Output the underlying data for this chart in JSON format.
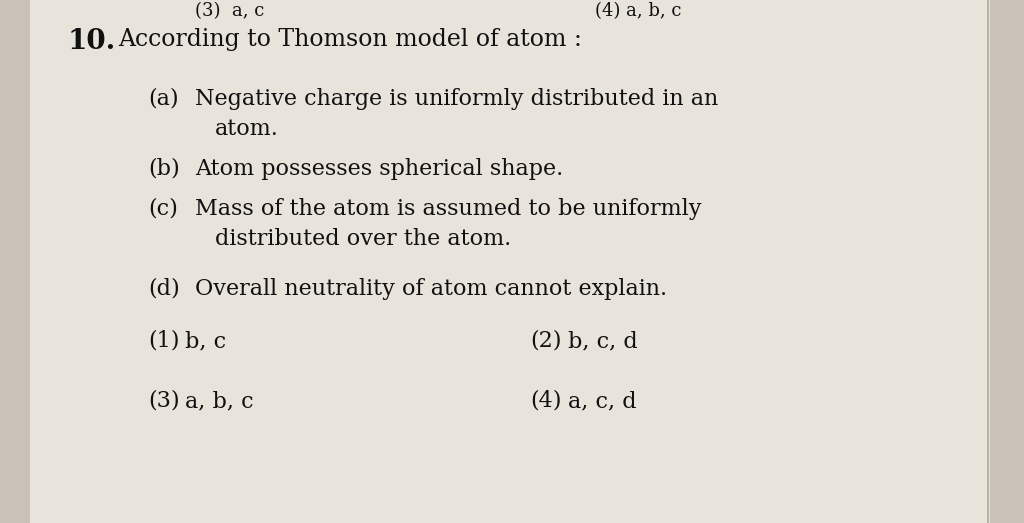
{
  "bg_color": "#c8c2b8",
  "paper_color": "#e8e4dc",
  "text_color": "#111111",
  "top_left_text": "(3)  a, c",
  "top_right_text": "(4) a, b, c",
  "question_number": "10.",
  "question_text": "According to Thomson model of atom :",
  "opt_a_label": "(a)",
  "opt_a_line1": "Negative charge is uniformly distributed in an",
  "opt_a_line2": "atom.",
  "opt_b_label": "(b)",
  "opt_b_text": "Atom possesses spherical shape.",
  "opt_c_label": "(c)",
  "opt_c_line1": "Mass of the atom is assumed to be uniformly",
  "opt_c_line2": "distributed over the atom.",
  "opt_d_label": "(d)",
  "opt_d_text": "Overall neutrality of atom cannot explain.",
  "ans1_num": "(1)",
  "ans1_val": "b, c",
  "ans2_num": "(2)",
  "ans2_val": "b, c, d",
  "ans3_num": "(3)",
  "ans3_val": "a, b, c",
  "ans4_num": "(4)",
  "ans4_val": "a, c, d",
  "border_color": "#b0a898",
  "figwidth": 10.24,
  "figheight": 5.23,
  "dpi": 100
}
